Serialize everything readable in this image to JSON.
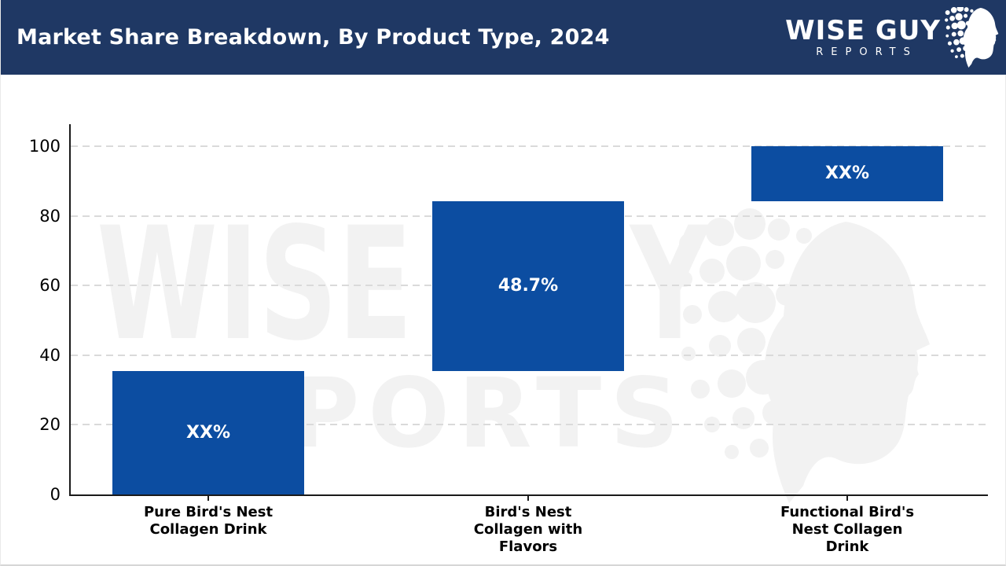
{
  "header": {
    "title": "Market Share Breakdown, By Product Type, 2024",
    "logo": {
      "wordmark": "WISE GUY",
      "subtext": "REPORTS"
    }
  },
  "watermark": {
    "wordmark": "WISE GUY",
    "subtext": "REPORTS"
  },
  "icons": {
    "logo_face": "wise-guy-dotted-face-profile"
  },
  "colors": {
    "header_bg": "#1f3864",
    "bar": "#0c4da1",
    "grid": "#dadada",
    "axis": "#1a1a1a",
    "watermark": "#f2f2f2",
    "title_text": "#ffffff"
  },
  "chart_data": {
    "type": "bar",
    "variant": "stacked-segment-waterfall",
    "title": "Market Share Breakdown, By Product Type, 2024",
    "categories": [
      "Pure Bird's Nest\nCollagen Drink",
      "Bird's Nest\nCollagen with\nFlavors",
      "Functional Bird's\nNest Collagen\nDrink"
    ],
    "segments": [
      {
        "category": "Pure Bird's Nest Collagen Drink",
        "label": "XX%",
        "start": 0,
        "end": 35.5,
        "value_est": 35.5
      },
      {
        "category": "Bird's Nest Collagen with Flavors",
        "label": "48.7%",
        "start": 35.5,
        "end": 84.2,
        "value_est": 48.7
      },
      {
        "category": "Functional Bird's Nest Collagen Drink",
        "label": "XX%",
        "start": 84.2,
        "end": 100,
        "value_est": 15.8
      }
    ],
    "xlabel": "",
    "ylabel": "",
    "yticks": [
      0,
      20,
      40,
      60,
      80,
      100
    ],
    "ylim": [
      0,
      107
    ],
    "grid": "horizontal-dashed",
    "legend": null,
    "bar_color": "#0c4da1"
  }
}
